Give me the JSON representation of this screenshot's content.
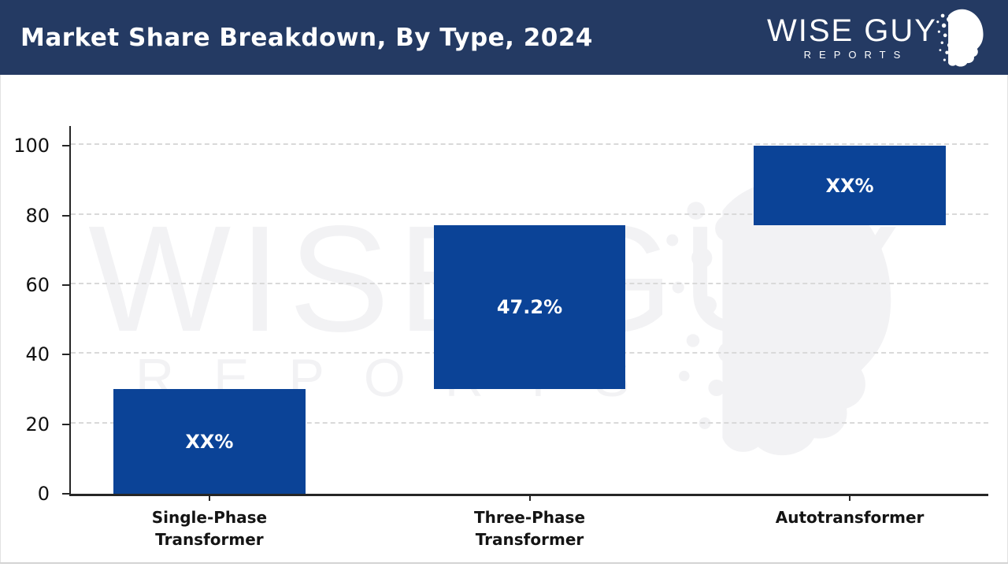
{
  "header": {
    "title": "Market Share Breakdown, By Type, 2024",
    "bg_color": "#243a63",
    "logo": {
      "line1": "WISE GUY",
      "line2": "REPORTS"
    }
  },
  "icons": {
    "logo_face": "dotted-face-profile",
    "watermark_face": "dotted-face-profile"
  },
  "watermark": {
    "line1": "WISE GUY",
    "line2": "REPORTS"
  },
  "chart_data": {
    "type": "bar",
    "subtype": "waterfall-segments",
    "title": "Market Share Breakdown, By Type, 2024",
    "categories": [
      [
        "Single-Phase",
        "Transformer"
      ],
      [
        "Three-Phase",
        "Transformer"
      ],
      [
        "Autotransformer"
      ]
    ],
    "series": [
      {
        "name": "Market share (%)",
        "segments": [
          {
            "start": 0,
            "end": 30,
            "label": "XX%"
          },
          {
            "start": 30,
            "end": 77.2,
            "label": "47.2%"
          },
          {
            "start": 77.2,
            "end": 100,
            "label": "XX%"
          }
        ]
      }
    ],
    "ylim": [
      0,
      105.7
    ],
    "yticks": [
      0,
      20,
      40,
      60,
      80,
      100
    ],
    "grid": "horizontal-dashed",
    "legend": "none",
    "bar_color": "#0b4397",
    "bar_label_color": "#ffffff",
    "axis_color": "#262626",
    "grid_color": "#d9d9d9"
  }
}
